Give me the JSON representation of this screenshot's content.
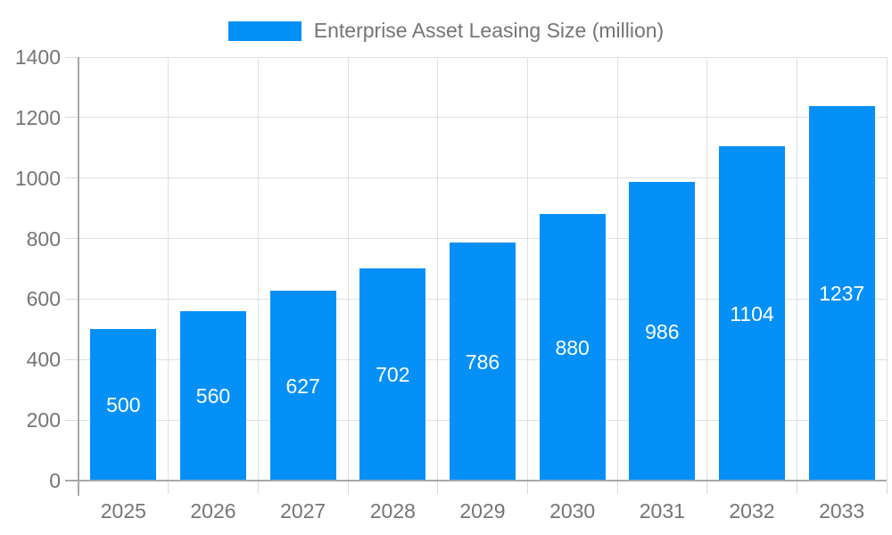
{
  "legend": {
    "label": "Enterprise Asset Leasing Size (million)"
  },
  "chart_data": {
    "type": "bar",
    "title": "Enterprise Asset Leasing Size (million)",
    "categories": [
      "2025",
      "2026",
      "2027",
      "2028",
      "2029",
      "2030",
      "2031",
      "2032",
      "2033"
    ],
    "values": [
      500,
      560,
      627,
      702,
      786,
      880,
      986,
      1104,
      1237
    ],
    "series": [
      {
        "name": "Enterprise Asset Leasing Size (million)",
        "values": [
          500,
          560,
          627,
          702,
          786,
          880,
          986,
          1104,
          1237
        ]
      }
    ],
    "xlabel": "",
    "ylabel": "",
    "ylim": [
      0,
      1400
    ],
    "ytick_step": 200,
    "ytick_labels": [
      "0",
      "200",
      "400",
      "600",
      "800",
      "1000",
      "1200",
      "1400"
    ],
    "grid": true,
    "legend_position": "top-center",
    "value_labels": "inside-center",
    "colors": {
      "bar": "#0590f7",
      "value_label": "#ffffff",
      "tick_text": "#757575",
      "gridline": "#e0e0e0",
      "axis": "#a8a8a8",
      "background": "#ffffff"
    }
  }
}
